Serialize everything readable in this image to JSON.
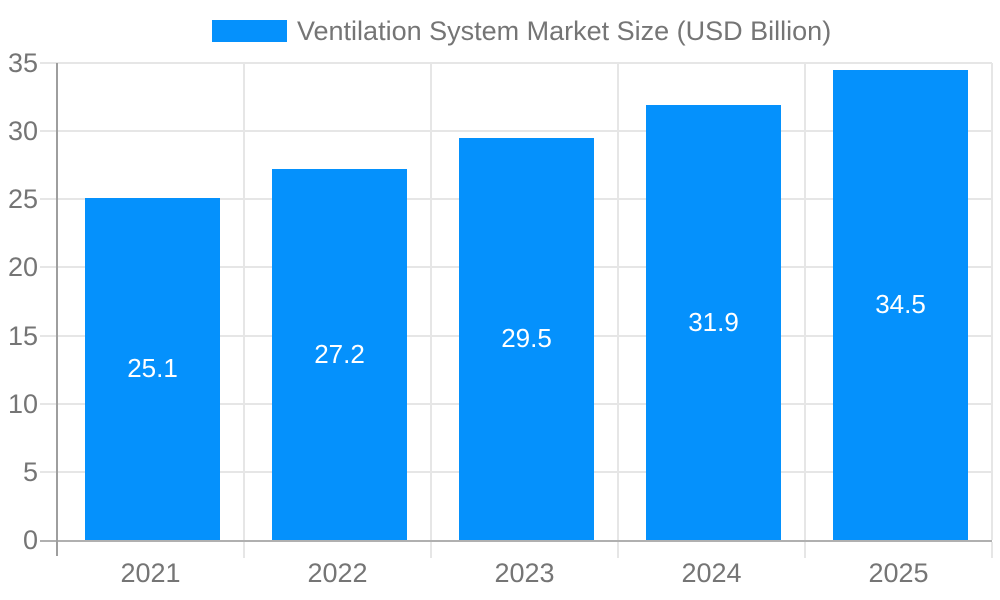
{
  "chart_data": {
    "type": "bar",
    "title": "Ventilation System Market Size (USD Billion)",
    "categories": [
      "2021",
      "2022",
      "2023",
      "2024",
      "2025"
    ],
    "values": [
      25.1,
      27.2,
      29.5,
      31.9,
      34.5
    ],
    "value_labels": [
      "25.1",
      "27.2",
      "29.5",
      "31.9",
      "34.5"
    ],
    "xlabel": "",
    "ylabel": "",
    "ylim": [
      0,
      35
    ],
    "ytick_step": 5,
    "ytick_labels": [
      "0",
      "5",
      "10",
      "15",
      "20",
      "25",
      "30",
      "35"
    ],
    "grid": true,
    "legend_position": "top-center",
    "colors": {
      "bar": "#0591fc",
      "label_text": "#757575",
      "value_label_text": "#ffffff",
      "gridline": "#e6e6e6",
      "y_axis_line": "#9e9e9e",
      "x_axis_line": "#b0b0b0",
      "background": "#ffffff"
    }
  }
}
